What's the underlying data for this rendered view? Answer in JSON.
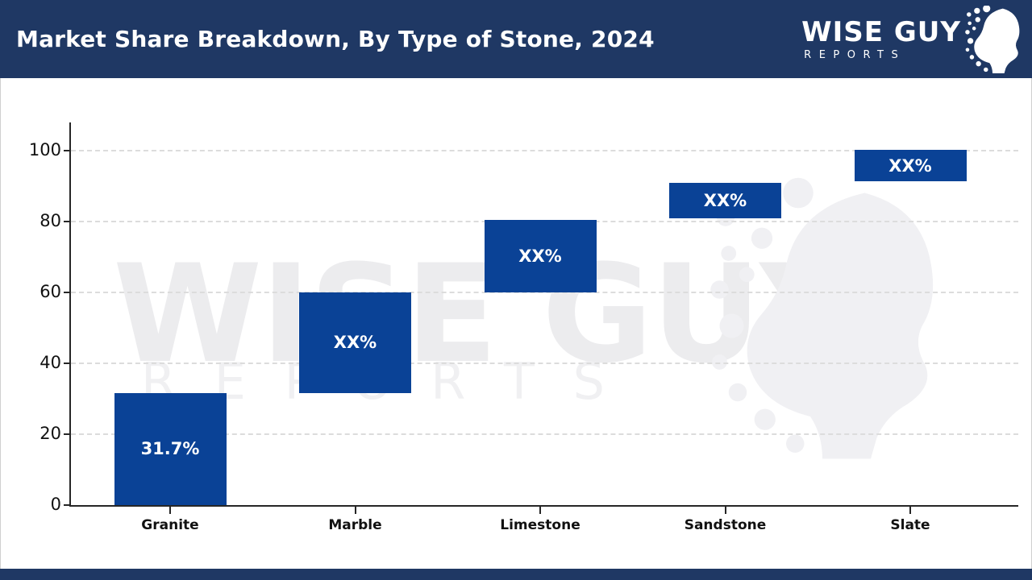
{
  "header": {
    "title": "Market Share Breakdown, By Type of Stone, 2024",
    "logo": {
      "line1": "WISE GUY",
      "line2": "REPORTS"
    }
  },
  "watermark": {
    "line1": "WISE GUY",
    "line2": "R E P O R T S"
  },
  "colors": {
    "header_bg": "#1f3864",
    "footer_bg": "#1f3864",
    "bar": "#0a4296",
    "bar_label": "#ffffff",
    "axis": "#262626",
    "grid": "#dcdcdc"
  },
  "chart_data": {
    "type": "bar",
    "subtype": "waterfall",
    "title": "Market Share Breakdown, By Type of Stone, 2024",
    "xlabel": "",
    "ylabel": "",
    "categories": [
      "Granite",
      "Marble",
      "Limestone",
      "Sandstone",
      "Slate"
    ],
    "segments": [
      {
        "category": "Granite",
        "start": 0,
        "end": 31.7,
        "label": "31.7%"
      },
      {
        "category": "Marble",
        "start": 31.7,
        "end": 60,
        "label": "XX%"
      },
      {
        "category": "Limestone",
        "start": 60,
        "end": 80.5,
        "label": "XX%"
      },
      {
        "category": "Sandstone",
        "start": 81,
        "end": 91,
        "label": "XX%"
      },
      {
        "category": "Slate",
        "start": 91.3,
        "end": 100.2,
        "label": "XX%"
      }
    ],
    "yticks": [
      0,
      20,
      40,
      60,
      80,
      100
    ],
    "ylim": [
      0,
      108
    ],
    "grid": "horizontal-dashed",
    "legend": "none"
  }
}
